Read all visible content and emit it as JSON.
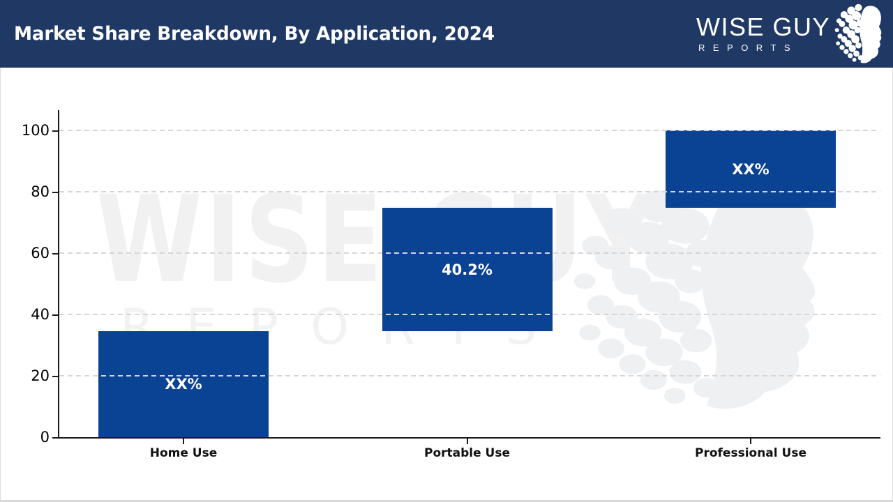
{
  "header": {
    "title": "Market Share Breakdown, By Application, 2024",
    "logo": {
      "line1": "WISE GUY",
      "line2": "REPORTS"
    }
  },
  "watermark": {
    "line1": "WISE GUY",
    "line2": "REPORTS"
  },
  "chart_data": {
    "type": "bar",
    "subtype": "floating-segment-waterfall",
    "title": "Market Share Breakdown, By Application, 2024",
    "categories": [
      "Home Use",
      "Portable Use",
      "Professional Use"
    ],
    "bars": [
      {
        "category": "Home Use",
        "start": 0,
        "end": 34.5,
        "label": "XX%"
      },
      {
        "category": "Portable Use",
        "start": 34.5,
        "end": 74.7,
        "label": "40.2%"
      },
      {
        "category": "Professional Use",
        "start": 74.7,
        "end": 100,
        "label": "XX%"
      }
    ],
    "yticks": [
      0,
      20,
      40,
      60,
      80,
      100
    ],
    "ylim": [
      0,
      100
    ],
    "xlabel": "",
    "ylabel": "",
    "grid": {
      "horizontal": true,
      "style": "dashed",
      "drawn_over_bars": true
    },
    "legend": null,
    "bar_color": "#0a4294",
    "bar_label_color": "#ffffff"
  },
  "colors": {
    "header_bg": "#1f3864",
    "header_text": "#ffffff",
    "bar": "#0a4294",
    "grid": "#d6d6d6",
    "axis": "#1a1a1a",
    "tick_label": "#000000",
    "watermark": "#f1f1f1",
    "bottom_border": "#d9d9d9"
  }
}
